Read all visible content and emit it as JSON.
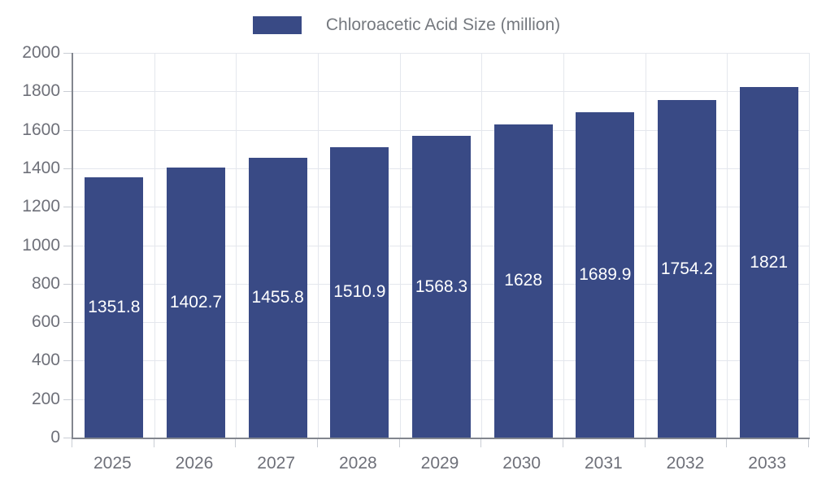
{
  "chart_data": {
    "type": "bar",
    "title": "Chloroacetic Acid Size (million)",
    "legend": [
      "Chloroacetic Acid Size (million)"
    ],
    "legend_position": "top-center",
    "categories": [
      "2025",
      "2026",
      "2027",
      "2028",
      "2029",
      "2030",
      "2031",
      "2032",
      "2033"
    ],
    "values": [
      1351.8,
      1402.7,
      1455.8,
      1510.9,
      1568.3,
      1628,
      1689.9,
      1754.2,
      1821
    ],
    "value_labels": [
      "1351.8",
      "1402.7",
      "1455.8",
      "1510.9",
      "1568.3",
      "1628",
      "1689.9",
      "1754.2",
      "1821"
    ],
    "xlabel": "",
    "ylabel": "",
    "ylim": [
      0,
      2000
    ],
    "y_ticks": [
      0,
      200,
      400,
      600,
      800,
      1000,
      1200,
      1400,
      1600,
      1800,
      2000
    ],
    "grid": true,
    "bar_label_position": "inside-center"
  },
  "colors": {
    "bar": "#394a85",
    "axis_line": "#82868e",
    "grid_line": "#e4e7ed",
    "tick_line": "#c9cdd4",
    "axis_text": "#6e7079",
    "legend_text": "#75797f",
    "value_text": "#ffffff"
  }
}
